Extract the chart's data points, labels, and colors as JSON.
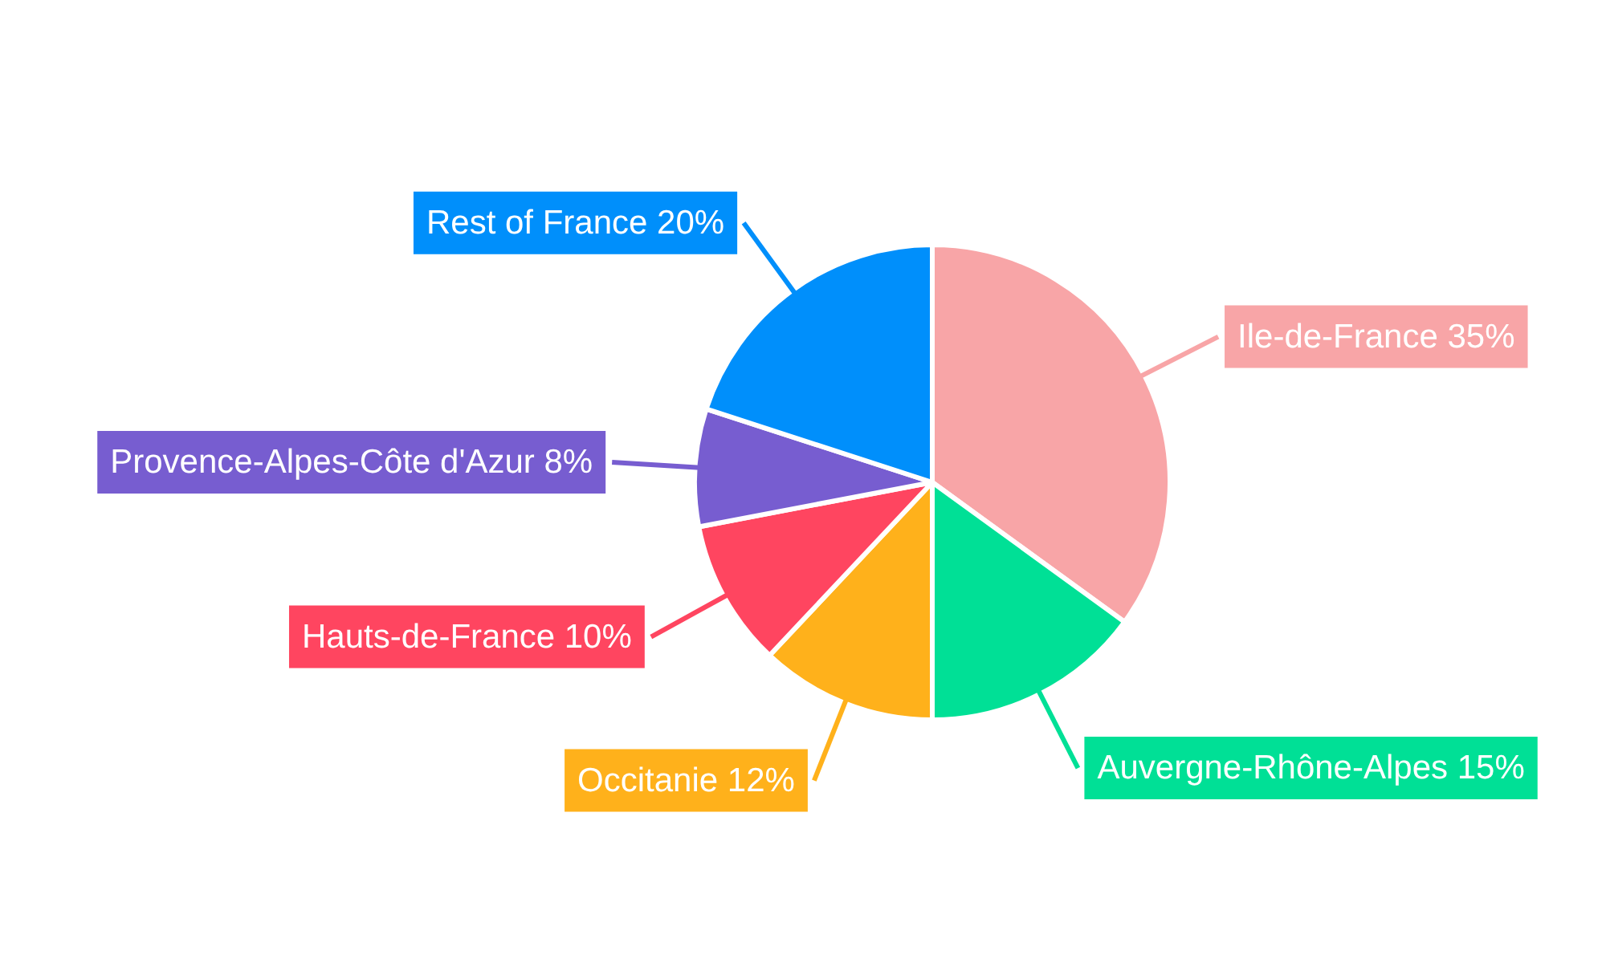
{
  "chart_data": {
    "type": "pie",
    "categories": [
      "Ile-de-France",
      "Auvergne-Rhône-Alpes",
      "Occitanie",
      "Hauts-de-France",
      "Provence-Alpes-Côte d'Azur",
      "Rest of France"
    ],
    "values": [
      35,
      15,
      12,
      10,
      8,
      20
    ],
    "colors": [
      "#f8a5a7",
      "#00e096",
      "#ffb11b",
      "#ff4560",
      "#775dd0",
      "#008ffb"
    ],
    "value_labels": [
      "35%",
      "15%",
      "12%",
      "10%",
      "8%",
      "20%"
    ]
  }
}
